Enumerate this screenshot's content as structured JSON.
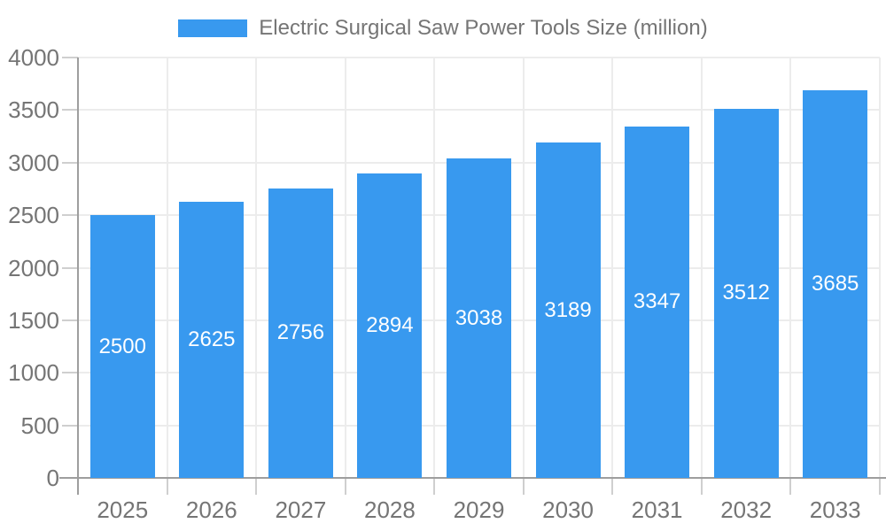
{
  "legend": {
    "label": "Electric Surgical Saw Power Tools Size (million)"
  },
  "chart_data": {
    "type": "bar",
    "title": "Electric Surgical Saw Power Tools Size (million)",
    "categories": [
      "2025",
      "2026",
      "2027",
      "2028",
      "2029",
      "2030",
      "2031",
      "2032",
      "2033"
    ],
    "values": [
      2500,
      2625,
      2756,
      2894,
      3038,
      3189,
      3347,
      3512,
      3685
    ],
    "xlabel": "",
    "ylabel": "",
    "ylim": [
      0,
      4000
    ],
    "yticks": [
      0,
      500,
      1000,
      1500,
      2000,
      2500,
      3000,
      3500,
      4000
    ],
    "grid": true,
    "legend_position": "top",
    "value_labels": "inside-center",
    "colors": {
      "bar": "#3899EF",
      "bar_label": "#ffffff",
      "axis_text": "#757575",
      "axis_line": "#9e9e9e",
      "tick_line": "#cfcfcf",
      "grid_line": "#ececec",
      "background": "#ffffff"
    }
  }
}
